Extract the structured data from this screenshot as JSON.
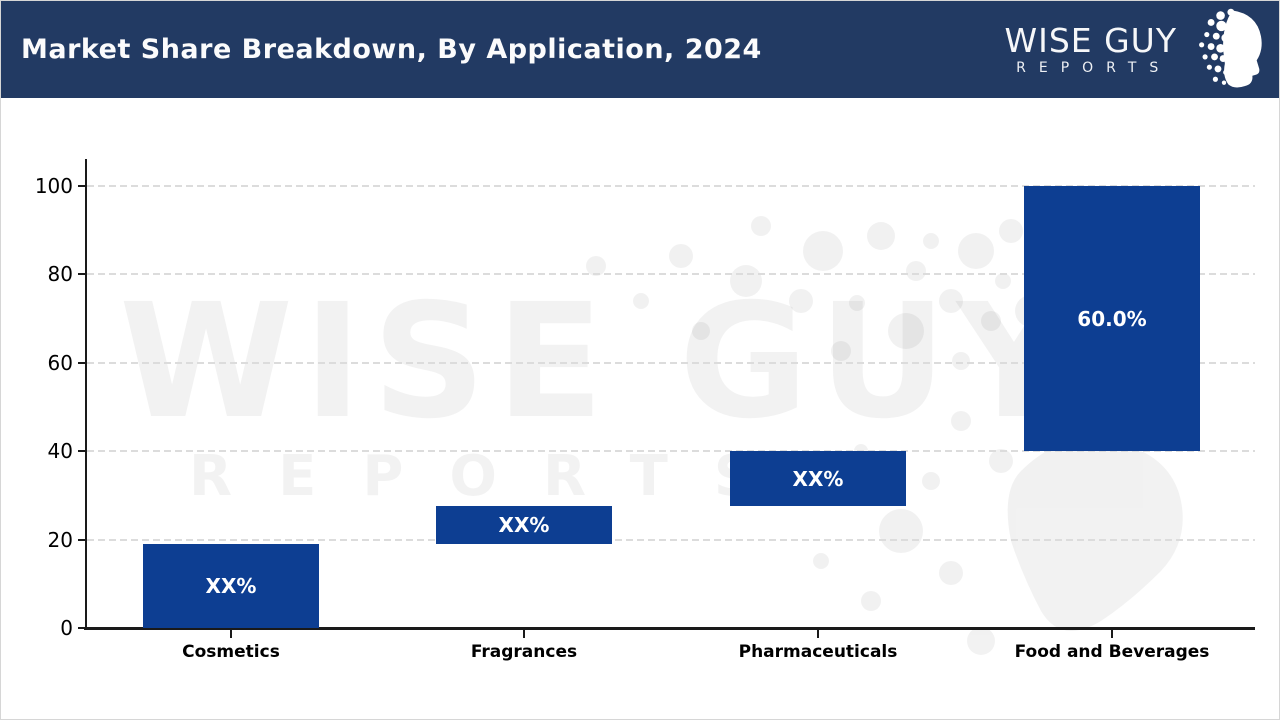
{
  "header": {
    "title": "Market Share Breakdown, By Application, 2024",
    "logo_line1": "WISE GUY",
    "logo_line2": "REPORTS"
  },
  "watermark": {
    "line1": "WISE GUY",
    "line2": "REPORTS"
  },
  "chart_data": {
    "type": "bar",
    "subtype": "waterfall",
    "title": "Market Share Breakdown, By Application, 2024",
    "categories": [
      "Cosmetics",
      "Fragrances",
      "Pharmaceuticals",
      "Food and Beverages"
    ],
    "segments": [
      {
        "category": "Cosmetics",
        "label": "XX%",
        "start": 0,
        "end": 19
      },
      {
        "category": "Fragrances",
        "label": "XX%",
        "start": 19,
        "end": 27.5
      },
      {
        "category": "Pharmaceuticals",
        "label": "XX%",
        "start": 27.5,
        "end": 40
      },
      {
        "category": "Food and Beverages",
        "label": "60.0%",
        "start": 40,
        "end": 100
      }
    ],
    "ylim": [
      0,
      100
    ],
    "yticks": [
      0,
      20,
      40,
      60,
      80,
      100
    ],
    "grid": "horizontal-dashed",
    "legend": "none",
    "bar_color": "#0d3e92"
  },
  "colors": {
    "header_bg": "#223a63",
    "bar": "#0d3e92",
    "grid": "#dcdcdc",
    "axis": "#1a1a1a"
  }
}
